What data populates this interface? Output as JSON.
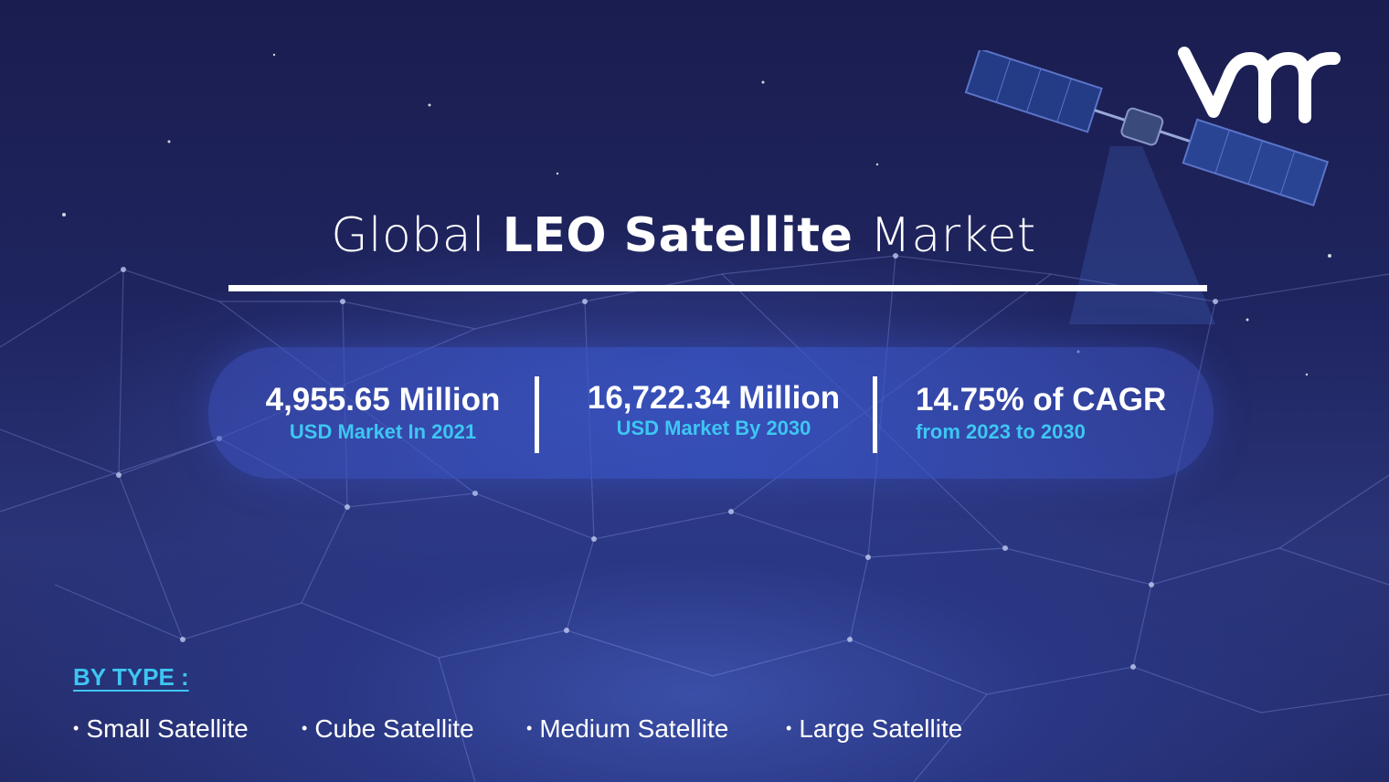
{
  "title": {
    "prefix": "Global",
    "emphasis": "LEO Satellite",
    "suffix": "Market"
  },
  "logo": {
    "text": "vmr",
    "color": "#ffffff"
  },
  "stats": [
    {
      "value": "4,955.65 Million",
      "caption": "USD Market In 2021"
    },
    {
      "value": "16,722.34 Million",
      "caption": "USD Market By 2030"
    },
    {
      "value": "14.75% of CAGR",
      "caption": "from 2023 to 2030"
    }
  ],
  "segmentation": {
    "heading": "BY TYPE :",
    "items": [
      "Small Satellite",
      "Cube Satellite",
      "Medium Satellite",
      "Large Satellite"
    ]
  },
  "colors": {
    "accent": "#3ec6f2",
    "background": "#1f2560",
    "text": "#ffffff"
  }
}
